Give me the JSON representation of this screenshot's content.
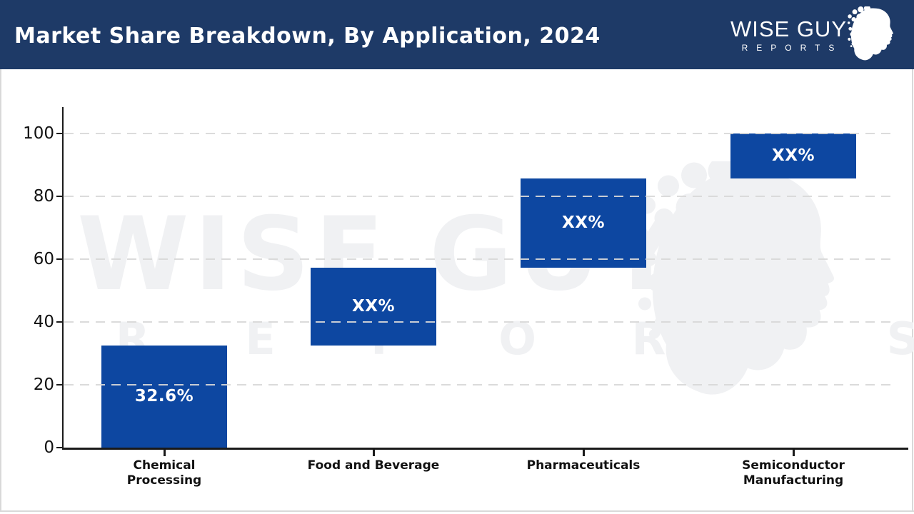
{
  "header": {
    "title": "Market Share Breakdown, By Application, 2024",
    "logo": {
      "line1": "WISE GUY",
      "line2": "REPORTS"
    }
  },
  "watermark": {
    "line1": "WISE GUY",
    "line2": "R E P O R T S"
  },
  "colors": {
    "header_navy": "#1e3a67",
    "bar_blue": "#0d47a1",
    "watermark_gray": "#f0f1f3",
    "gridline_gray": "#d8d8d8",
    "axis_black": "#1a1a1a",
    "bar_label_white": "#ffffff",
    "frame_gray": "#d9d9d9",
    "background": "#ffffff"
  },
  "chart_data": {
    "type": "waterfall",
    "title": "Market Share Breakdown, By Application, 2024",
    "categories": [
      "Chemical Processing",
      "Food and Beverage",
      "Pharmaceuticals",
      "Semiconductor Manufacturing"
    ],
    "tick_labels": [
      "Chemical\nProcessing",
      "Food and Beverage",
      "Pharmaceuticals",
      "Semiconductor\nManufacturing"
    ],
    "segments": [
      {
        "category": "Chemical Processing",
        "start": 0,
        "end": 32.6,
        "label": "32.6%"
      },
      {
        "category": "Food and Beverage",
        "start": 32.6,
        "end": 57.3,
        "label": "XX%"
      },
      {
        "category": "Pharmaceuticals",
        "start": 57.3,
        "end": 85.7,
        "label": "XX%"
      },
      {
        "category": "Semiconductor Manufacturing",
        "start": 85.7,
        "end": 100,
        "label": "XX%"
      }
    ],
    "ylim": [
      0,
      100
    ],
    "yticks": [
      0,
      20,
      40,
      60,
      80,
      100
    ],
    "grid": "dashed horizontal gridlines, drawn over bars",
    "legend": "none",
    "bar_color": "#0d47a1",
    "xlabel": "",
    "ylabel": ""
  }
}
